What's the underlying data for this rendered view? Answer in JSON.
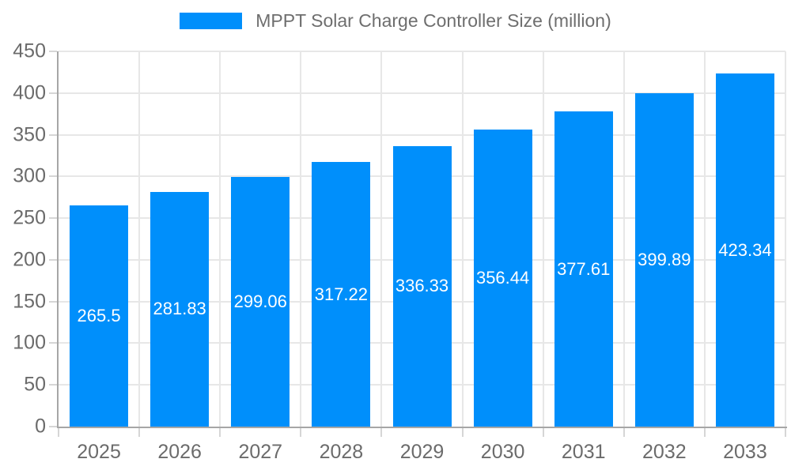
{
  "legend": {
    "label": "MPPT Solar Charge Controller Size (million)"
  },
  "chart_data": {
    "type": "bar",
    "title": "MPPT Solar Charge Controller Size (million)",
    "series_name": "MPPT Solar Charge Controller Size (million)",
    "categories": [
      "2025",
      "2026",
      "2027",
      "2028",
      "2029",
      "2030",
      "2031",
      "2032",
      "2033"
    ],
    "values": [
      265.5,
      281.83,
      299.06,
      317.22,
      336.33,
      356.44,
      377.61,
      399.89,
      423.34
    ],
    "data_labels": [
      "265.5",
      "281.83",
      "299.06",
      "317.22",
      "336.33",
      "356.44",
      "377.61",
      "399.89",
      "423.34"
    ],
    "xlabel": "",
    "ylabel": "",
    "ylim": [
      0,
      450
    ],
    "ytick_step": 50,
    "ytick_labels": [
      "0",
      "50",
      "100",
      "150",
      "200",
      "250",
      "300",
      "350",
      "400",
      "450"
    ],
    "grid": true,
    "legend_position": "top",
    "colors": {
      "bar": "#008FFB",
      "data_label": "#ffffff",
      "axis_text": "#6b6b6b",
      "legend_text": "#6e6e6e",
      "gridline": "#e7e7e7",
      "axis_line": "#a6a6a6",
      "tick": "#d6d6d6",
      "background": "#ffffff"
    }
  }
}
